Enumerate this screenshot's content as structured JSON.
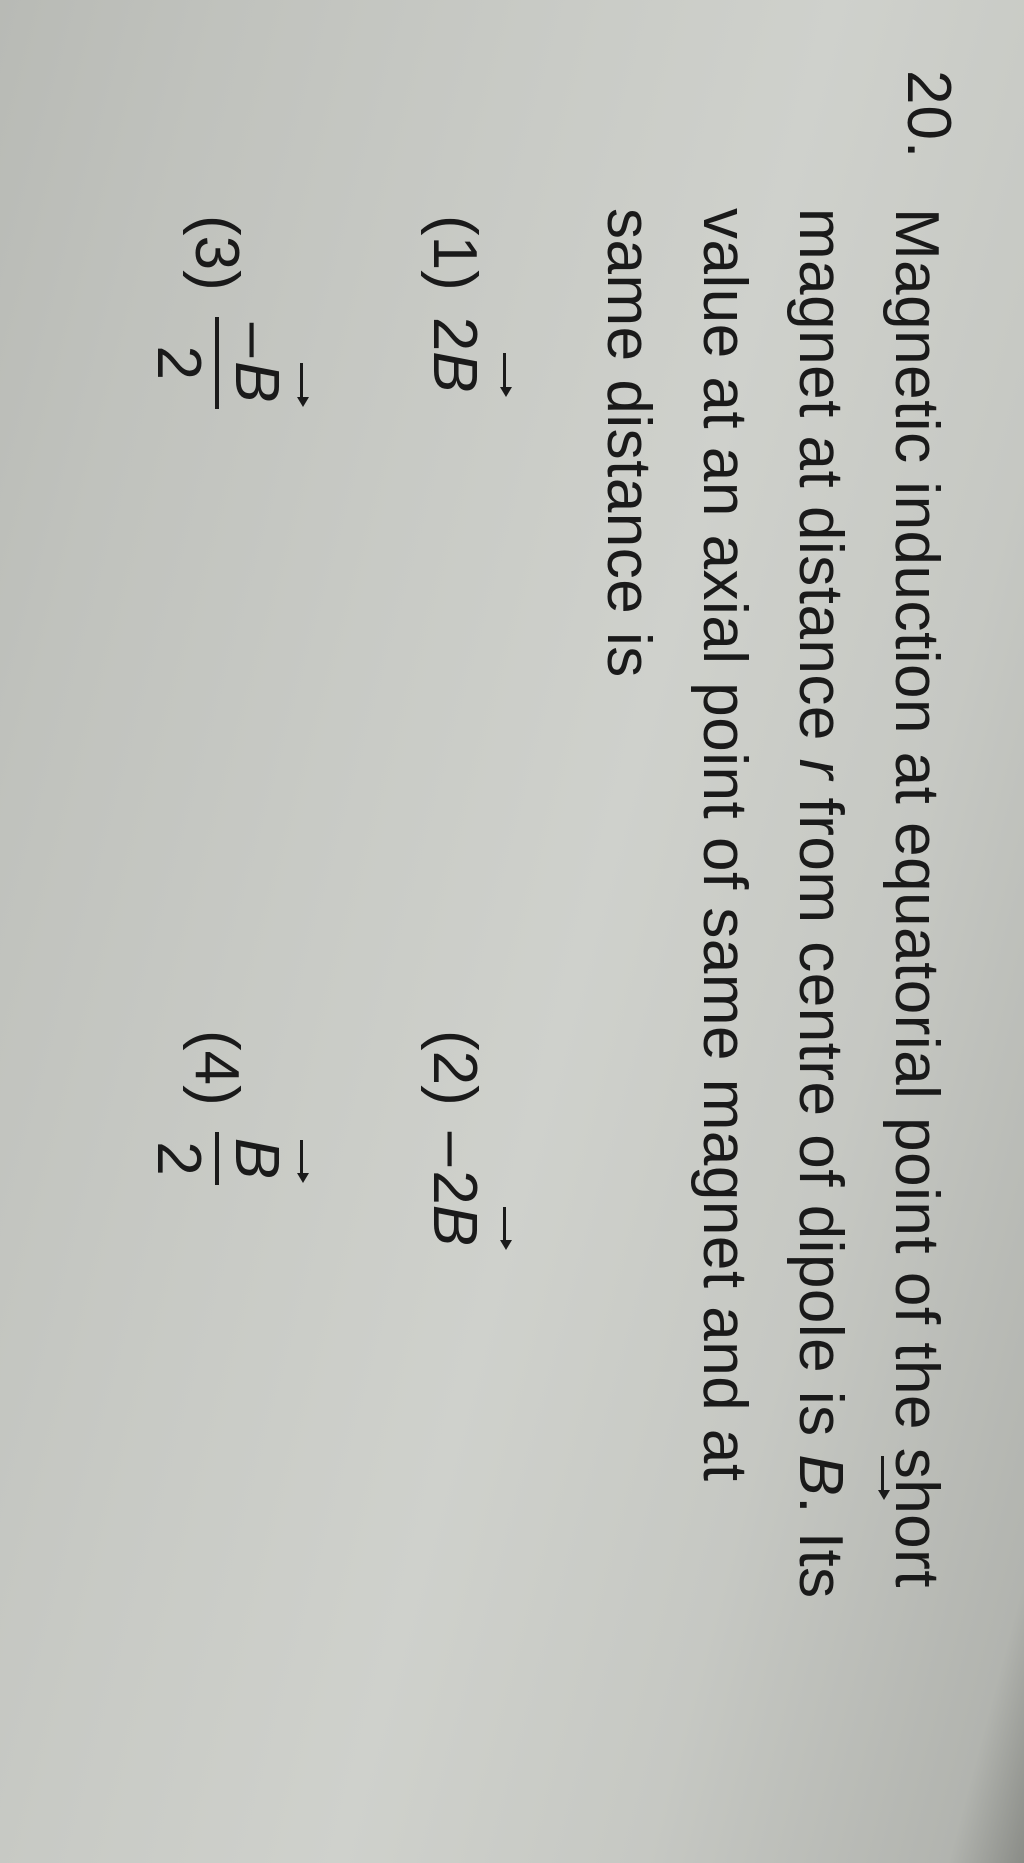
{
  "question": {
    "number": "20.",
    "line1_a": "Magnetic induction at equatorial point of the short",
    "line2_a": "magnet at distance ",
    "line2_r": "r",
    "line2_b": " from centre of dipole is ",
    "line2_B": "B",
    "line2_c": ". Its",
    "line3_a": "value at an axial point of same magnet and at",
    "line4_a": "same distance is"
  },
  "options": {
    "o1": {
      "label": "(1)",
      "coef": "2",
      "sym": "B"
    },
    "o2": {
      "label": "(2)",
      "neg": "–",
      "coef": "2",
      "sym": "B"
    },
    "o3": {
      "label": "(3)",
      "num_neg": "–",
      "num_sym": "B",
      "den": "2"
    },
    "o4": {
      "label": "(4)",
      "num_sym": "B",
      "den": "2"
    }
  },
  "style": {
    "text_color": "#1a1a1a",
    "fontsize_pt": 46
  }
}
